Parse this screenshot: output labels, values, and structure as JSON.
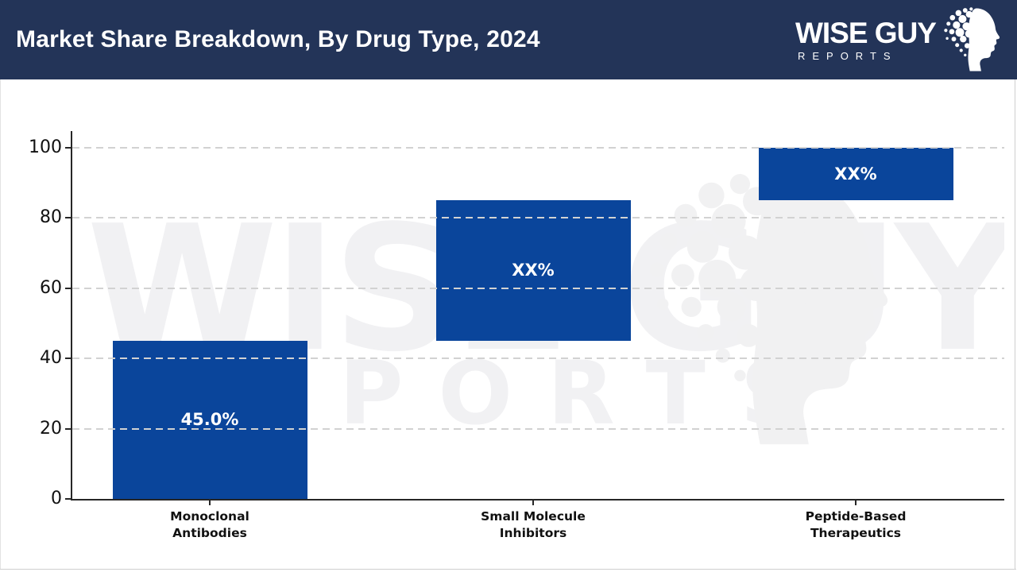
{
  "header": {
    "title": "Market Share Breakdown, By Drug Type, 2024",
    "logo": {
      "wordmark": "WISE GUY",
      "subtext": "REPORTS"
    }
  },
  "watermark": {
    "line1": "WISE GUY",
    "line2": "REPORTS"
  },
  "chart_data": {
    "type": "bar",
    "variant": "waterfall",
    "title": "Market Share Breakdown, By Drug Type, 2024",
    "unit": "%",
    "categories": [
      [
        "Monoclonal",
        "Antibodies"
      ],
      [
        "Small Molecule",
        "Inhibitors"
      ],
      [
        "Peptide-Based",
        "Therapeutics"
      ]
    ],
    "bars": [
      {
        "category": "Monoclonal Antibodies",
        "start": 0,
        "end": 45,
        "value": 45.0,
        "label": "45.0%"
      },
      {
        "category": "Small Molecule Inhibitors",
        "start": 45,
        "end": 85,
        "value": 40.0,
        "label": "XX%"
      },
      {
        "category": "Peptide-Based Therapeutics",
        "start": 85,
        "end": 100,
        "value": 15.0,
        "label": "XX%"
      }
    ],
    "ylim": [
      0,
      105
    ],
    "yticks": [
      0,
      20,
      40,
      60,
      80,
      100
    ],
    "grid": {
      "axis": "y",
      "style": "dashed",
      "color": "#d2d2d2"
    },
    "bar_color": "#0a459b",
    "bar_label_color": "#ffffff"
  },
  "colors": {
    "header_bg": "#233458",
    "bar": "#0a459b",
    "axis": "#262626",
    "grid": "#d2d2d2",
    "watermark": "#f1f1f2",
    "text": "#111111",
    "title_text": "#ffffff"
  }
}
